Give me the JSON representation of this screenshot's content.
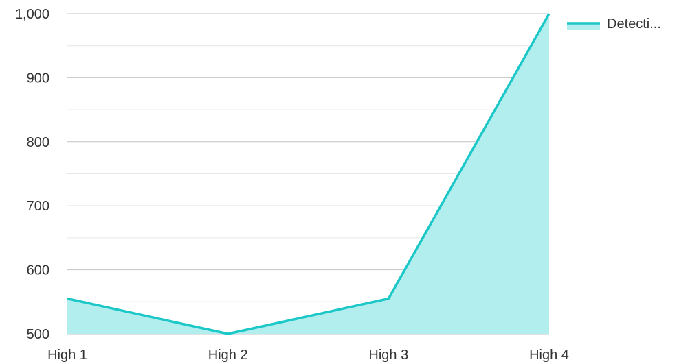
{
  "chart_data": {
    "type": "area",
    "categories": [
      "High 1",
      "High 2",
      "High 3",
      "High 4"
    ],
    "series": [
      {
        "name": "Detecti...",
        "values": [
          555,
          500,
          555,
          1000
        ]
      }
    ],
    "ylim": [
      500,
      1000
    ],
    "y_ticks": [
      500,
      600,
      700,
      800,
      900,
      1000
    ],
    "y_tick_labels": [
      "500",
      "600",
      "700",
      "800",
      "900",
      "1,000"
    ],
    "grid": true,
    "legend_position": "top-right",
    "colors": {
      "line": "#1cc7c7",
      "fill": "#b2eeee",
      "grid_major": "#c4c4c4",
      "grid_minor": "#e6e6e6",
      "text": "#333333"
    }
  }
}
